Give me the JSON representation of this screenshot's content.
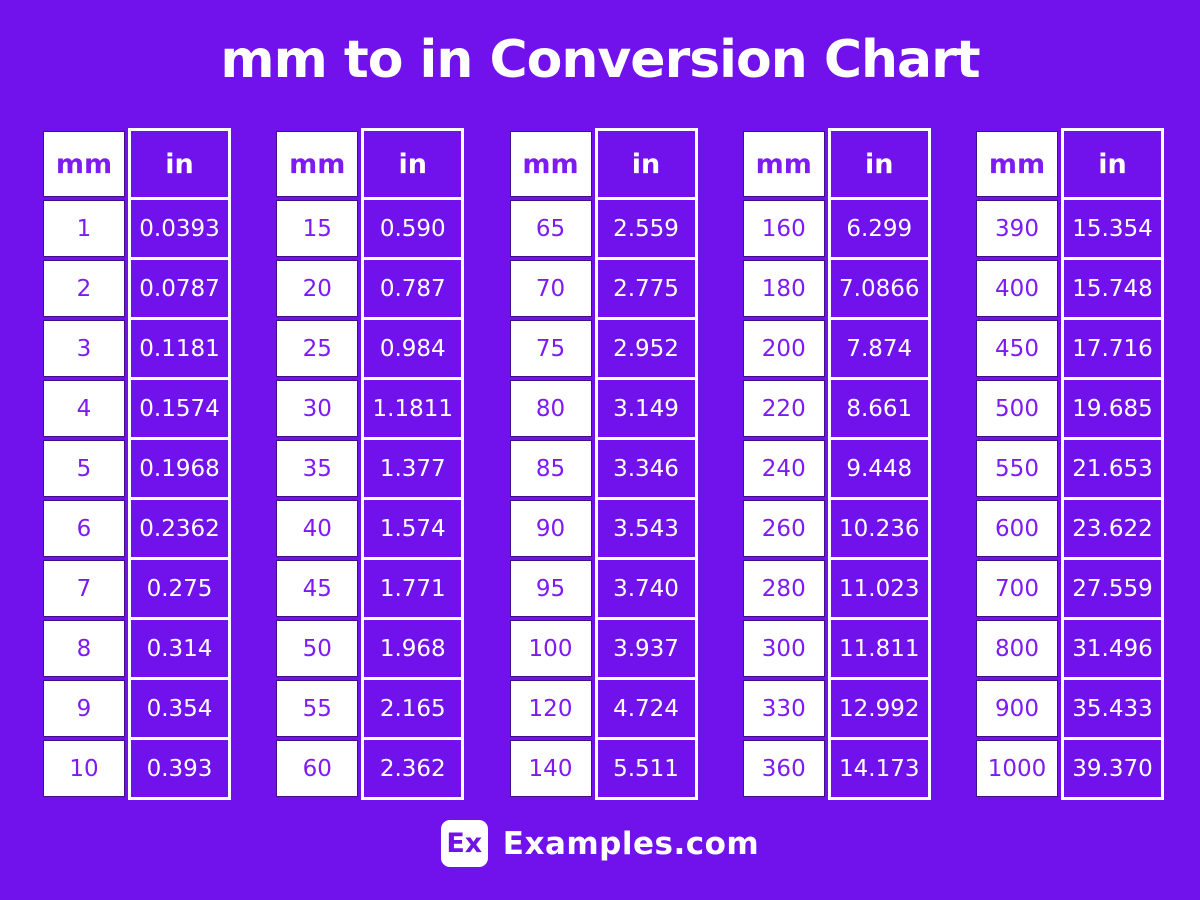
{
  "title": "mm to in Conversion Chart",
  "header_labels": {
    "mm": "mm",
    "in": "in"
  },
  "chart_data": {
    "type": "table",
    "title": "mm to in Conversion Chart",
    "columns": [
      "mm",
      "in"
    ],
    "tables": [
      {
        "rows": [
          [
            "1",
            "0.0393"
          ],
          [
            "2",
            "0.0787"
          ],
          [
            "3",
            "0.1181"
          ],
          [
            "4",
            "0.1574"
          ],
          [
            "5",
            "0.1968"
          ],
          [
            "6",
            "0.2362"
          ],
          [
            "7",
            "0.275"
          ],
          [
            "8",
            "0.314"
          ],
          [
            "9",
            "0.354"
          ],
          [
            "10",
            "0.393"
          ]
        ]
      },
      {
        "rows": [
          [
            "15",
            "0.590"
          ],
          [
            "20",
            "0.787"
          ],
          [
            "25",
            "0.984"
          ],
          [
            "30",
            "1.1811"
          ],
          [
            "35",
            "1.377"
          ],
          [
            "40",
            "1.574"
          ],
          [
            "45",
            "1.771"
          ],
          [
            "50",
            "1.968"
          ],
          [
            "55",
            "2.165"
          ],
          [
            "60",
            "2.362"
          ]
        ]
      },
      {
        "rows": [
          [
            "65",
            "2.559"
          ],
          [
            "70",
            "2.775"
          ],
          [
            "75",
            "2.952"
          ],
          [
            "80",
            "3.149"
          ],
          [
            "85",
            "3.346"
          ],
          [
            "90",
            "3.543"
          ],
          [
            "95",
            "3.740"
          ],
          [
            "100",
            "3.937"
          ],
          [
            "120",
            "4.724"
          ],
          [
            "140",
            "5.511"
          ]
        ]
      },
      {
        "rows": [
          [
            "160",
            "6.299"
          ],
          [
            "180",
            "7.0866"
          ],
          [
            "200",
            "7.874"
          ],
          [
            "220",
            "8.661"
          ],
          [
            "240",
            "9.448"
          ],
          [
            "260",
            "10.236"
          ],
          [
            "280",
            "11.023"
          ],
          [
            "300",
            "11.811"
          ],
          [
            "330",
            "12.992"
          ],
          [
            "360",
            "14.173"
          ]
        ]
      },
      {
        "rows": [
          [
            "390",
            "15.354"
          ],
          [
            "400",
            "15.748"
          ],
          [
            "450",
            "17.716"
          ],
          [
            "500",
            "19.685"
          ],
          [
            "550",
            "21.653"
          ],
          [
            "600",
            "23.622"
          ],
          [
            "700",
            "27.559"
          ],
          [
            "800",
            "31.496"
          ],
          [
            "900",
            "35.433"
          ],
          [
            "1000",
            "39.370"
          ]
        ]
      }
    ]
  },
  "footer": {
    "logo_text": "Ex",
    "brand": "Examples.com"
  },
  "colors": {
    "background": "#7112EC",
    "cell_purple": "#7112EC",
    "white": "#FFFFFF",
    "mm_text": "#7D1BF2",
    "dark_border": "#3F0F8C"
  }
}
